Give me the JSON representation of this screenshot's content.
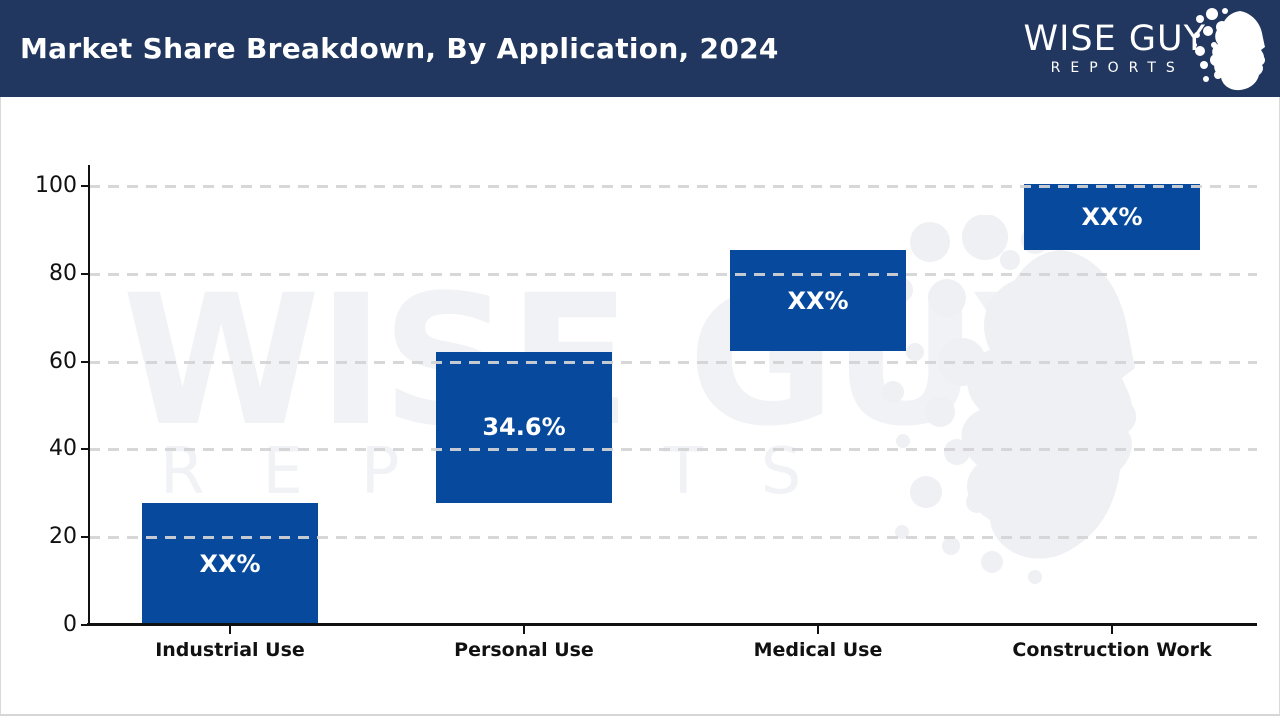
{
  "header": {
    "title": "Market Share Breakdown, By Application, 2024",
    "logo": {
      "name_line": "WISE GUY",
      "sub_line": "REPORTS"
    }
  },
  "watermark": {
    "line1": "WISE GUY",
    "line2": "REPORTS"
  },
  "colors": {
    "header_bg": "#21375f",
    "bar": "#07499d",
    "axis": "#111111",
    "grid": "#d8d8d8",
    "watermark": "#f1f2f5",
    "bar_label_text": "#ffffff",
    "title_text": "#ffffff"
  },
  "chart_data": {
    "type": "bar",
    "subtype": "waterfall",
    "title": "Market Share Breakdown, By Application, 2024",
    "categories": [
      "Industrial Use",
      "Personal Use",
      "Medical Use",
      "Construction Work"
    ],
    "bars": [
      {
        "category": "Industrial Use",
        "start": 0,
        "end": 27.7,
        "label": "XX%"
      },
      {
        "category": "Personal Use",
        "start": 27.7,
        "end": 62.3,
        "label": "34.6%"
      },
      {
        "category": "Medical Use",
        "start": 62.3,
        "end": 85.5,
        "label": "XX%"
      },
      {
        "category": "Construction Work",
        "start": 85.5,
        "end": 100.5,
        "label": "XX%"
      }
    ],
    "yticks": [
      0,
      20,
      40,
      60,
      80,
      100
    ],
    "ylim": [
      0,
      105
    ],
    "xlabel": "",
    "ylabel": "",
    "grid": "horizontal-dashed",
    "legend": false
  }
}
